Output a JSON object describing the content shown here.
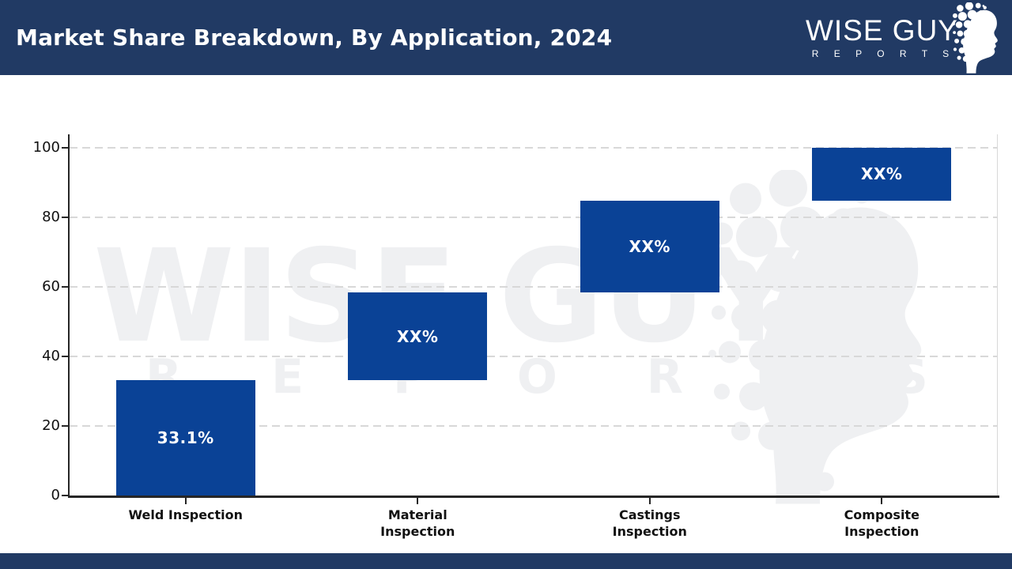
{
  "header": {
    "title": "Market Share Breakdown, By Application, 2024",
    "logo": {
      "name": "WISE GUY",
      "sub": "R E P O R T S"
    }
  },
  "watermark": {
    "line1": "WISE GUY",
    "line2": "R E P O R T S"
  },
  "colors": {
    "header_bg": "#213a64",
    "footer_bg": "#213a64",
    "bar": "#0a4296",
    "bar_label": "#ffffff",
    "grid": "#d8d8d8",
    "axis": "#262626",
    "watermark": "#eff0f2",
    "title_text": "#ffffff",
    "tick_text": "#111111"
  },
  "chart_data": {
    "type": "bar",
    "subtype": "waterfall",
    "title": "Market Share Breakdown, By Application, 2024",
    "categories": [
      "Weld Inspection",
      "Material\nInspection",
      "Castings\nInspection",
      "Composite\nInspection"
    ],
    "segments": [
      {
        "category": "Weld Inspection",
        "start": 0,
        "end": 33.1,
        "label": "33.1%"
      },
      {
        "category": "Material Inspection",
        "start": 33.1,
        "end": 58.4,
        "label": "XX%"
      },
      {
        "category": "Castings Inspection",
        "start": 58.4,
        "end": 84.8,
        "label": "XX%"
      },
      {
        "category": "Composite Inspection",
        "start": 84.8,
        "end": 100,
        "label": "XX%"
      }
    ],
    "bar_labels": [
      "33.1%",
      "XX%",
      "XX%",
      "XX%"
    ],
    "yticks": [
      0,
      20,
      40,
      60,
      80,
      100
    ],
    "ylim": [
      0,
      103.5
    ],
    "xlabel": "",
    "ylabel": "",
    "grid": "horizontal-dashed",
    "legend": "none",
    "bar_color": "#0a4296"
  }
}
